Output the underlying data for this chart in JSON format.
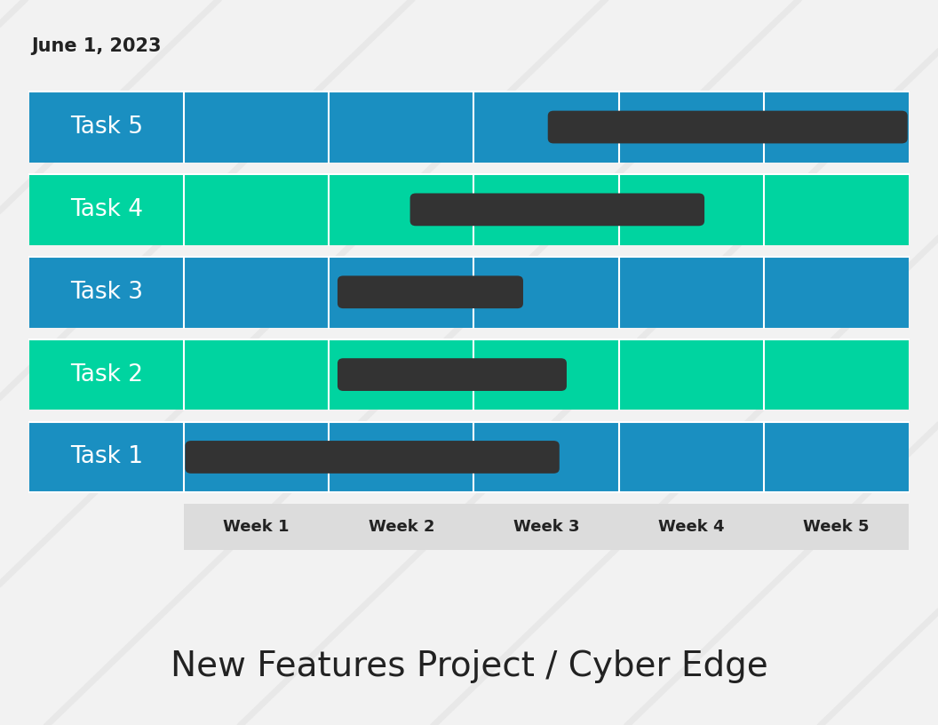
{
  "title": "New Features Project / Cyber Edge",
  "date_label": "June 1, 2023",
  "weeks": [
    "Week 1",
    "Week 2",
    "Week 3",
    "Week 4",
    "Week 5"
  ],
  "tasks": [
    "Task 1",
    "Task 2",
    "Task 3",
    "Task 4",
    "Task 5"
  ],
  "task_colors": [
    "#1a8fc1",
    "#00d4a0",
    "#1a8fc1",
    "#00d4a0",
    "#1a8fc1"
  ],
  "bar_color": "#333333",
  "background_color": "#f2f2f2",
  "stripe_color": "#e8e8e8",
  "header_bg": "#dcdcdc",
  "white_line": "#ffffff",
  "gantt_bars": [
    {
      "task": 0,
      "start_week": 0.05,
      "end_week": 2.55
    },
    {
      "task": 1,
      "start_week": 1.1,
      "end_week": 2.6
    },
    {
      "task": 2,
      "start_week": 1.1,
      "end_week": 2.3
    },
    {
      "task": 3,
      "start_week": 1.6,
      "end_week": 3.55
    },
    {
      "task": 4,
      "start_week": 2.55,
      "end_week": 4.95
    }
  ],
  "figsize": [
    10.56,
    8.16
  ],
  "dpi": 100
}
